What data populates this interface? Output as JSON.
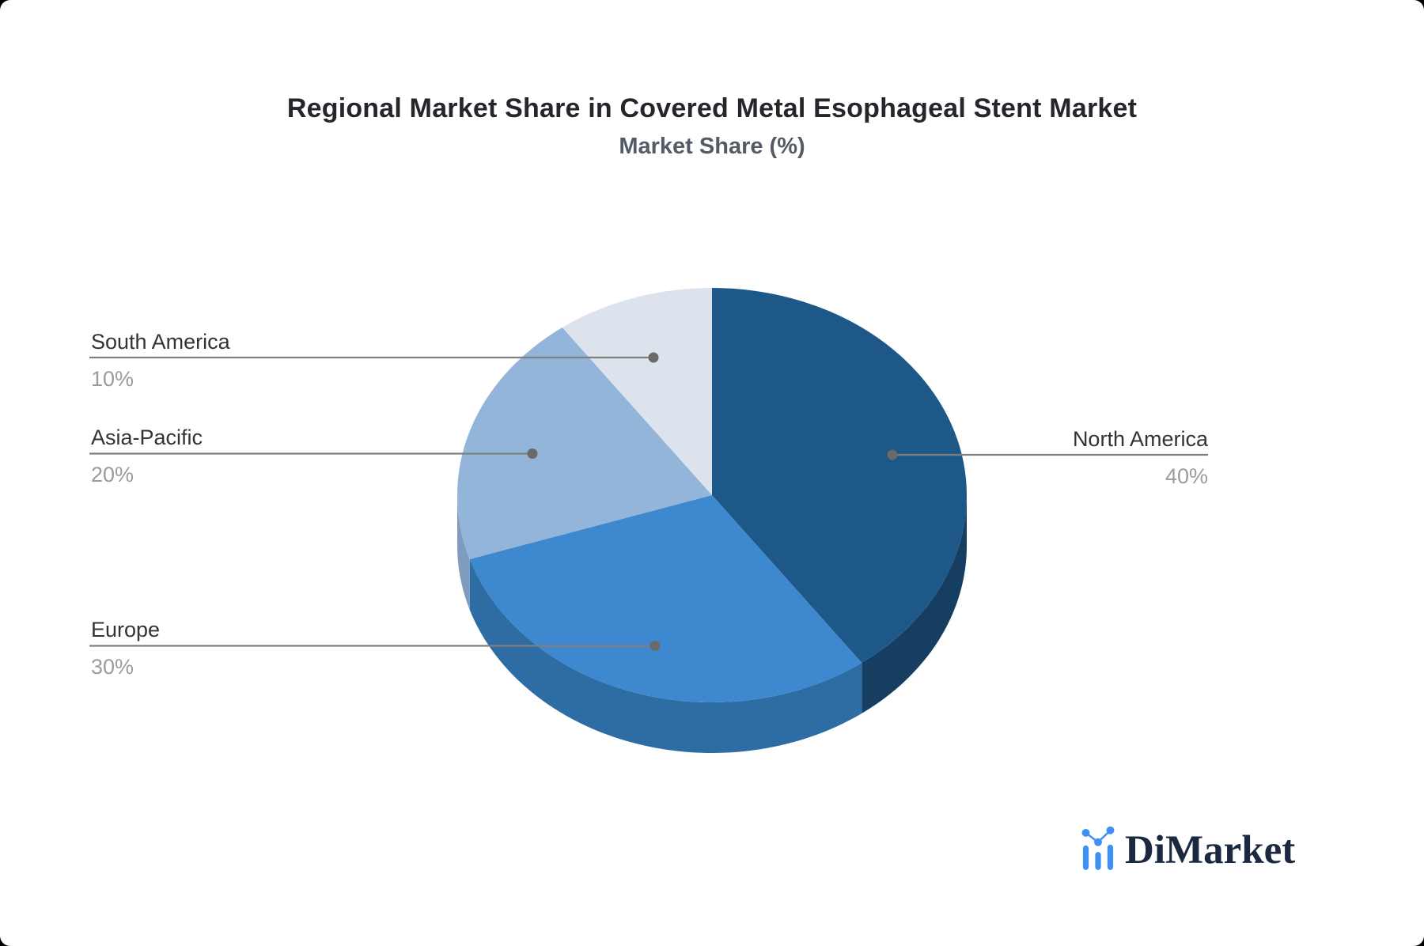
{
  "title": "Regional Market Share in Covered Metal Esophageal Stent Market",
  "subtitle": "Market Share (%)",
  "chart_data": {
    "type": "pie",
    "title": "Regional Market Share in Covered Metal Esophageal Stent Market",
    "subtitle": "Market Share (%)",
    "unit": "%",
    "start_angle": "12 o'clock",
    "direction": "clockwise",
    "categories": [
      "North America",
      "Europe",
      "Asia-Pacific",
      "South America"
    ],
    "values": [
      40,
      30,
      20,
      10
    ],
    "colors": [
      "#1e5889",
      "#3d88ce",
      "#93b5da",
      "#dde3ed"
    ],
    "side_colors": [
      "#163e61",
      "#2e6da4",
      "#7f9cbe",
      "#c9d3e2"
    ],
    "legend_position": "callouts",
    "callouts": [
      {
        "name": "South America",
        "value": "10%",
        "side": "left"
      },
      {
        "name": "Asia-Pacific",
        "value": "20%",
        "side": "left"
      },
      {
        "name": "Europe",
        "value": "30%",
        "side": "left"
      },
      {
        "name": "North America",
        "value": "40%",
        "side": "right"
      }
    ]
  },
  "style": {
    "leader_line_color": "#7f7f7f",
    "leader_dot_color": "#6a6a6a",
    "label_color": "#333333",
    "value_color": "#9b9b9b"
  },
  "logo": {
    "text": "DiMarket",
    "icon": "bar-line-chart-icon",
    "icon_color": "#3e90f2",
    "text_color": "#1a2940"
  }
}
